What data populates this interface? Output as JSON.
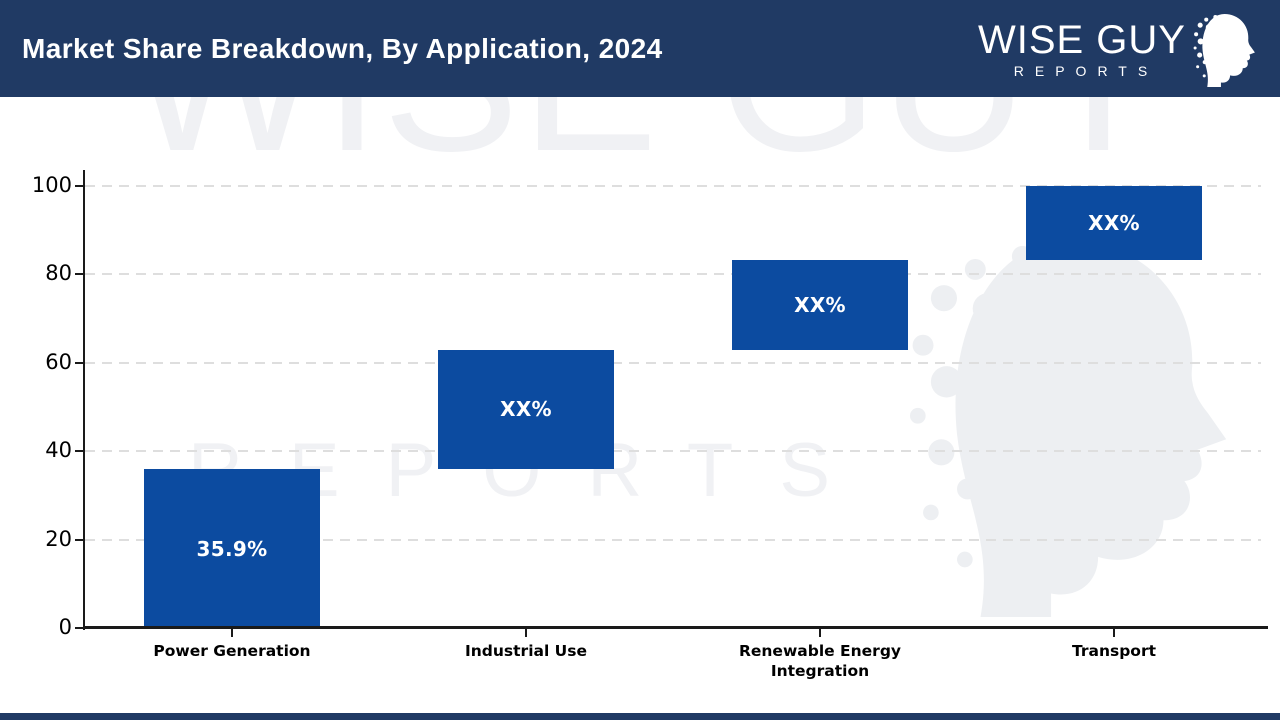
{
  "header": {
    "title": "Market Share Breakdown, By Application, 2024",
    "logo": {
      "primary": "WISE GUY",
      "secondary": "REPORTS"
    }
  },
  "watermark": {
    "primary": "WISE GUY",
    "secondary": "REPORTS"
  },
  "chart_data": {
    "type": "bar",
    "subtype": "waterfall",
    "title": "Market Share Breakdown, By Application, 2024",
    "categories": [
      "Power Generation",
      "Industrial Use",
      "Renewable Energy Integration",
      "Transport"
    ],
    "segments": [
      {
        "category": "Power Generation",
        "start": 0,
        "end": 35.9,
        "label": "35.9%"
      },
      {
        "category": "Industrial Use",
        "start": 35.9,
        "end": 63,
        "label": "XX%"
      },
      {
        "category": "Renewable Energy Integration",
        "start": 63,
        "end": 83.2,
        "label": "XX%"
      },
      {
        "category": "Transport",
        "start": 83.2,
        "end": 100,
        "label": "XX%"
      }
    ],
    "ylim": [
      0,
      100
    ],
    "yticks": [
      0,
      20,
      40,
      60,
      80,
      100
    ],
    "xlabel": "",
    "ylabel": "",
    "grid": "horizontal-dashed",
    "legend": "none",
    "colors": {
      "bar": "#0c4ba0",
      "bar_label": "#ffffff",
      "axis": "#1a1a1a",
      "gridline": "#dedede",
      "tick_label": "#000000"
    }
  },
  "colors": {
    "header_bg": "#203a64",
    "footer_bg": "#203a64",
    "page_bg": "#ffffff",
    "watermark": "#f0f1f4"
  }
}
